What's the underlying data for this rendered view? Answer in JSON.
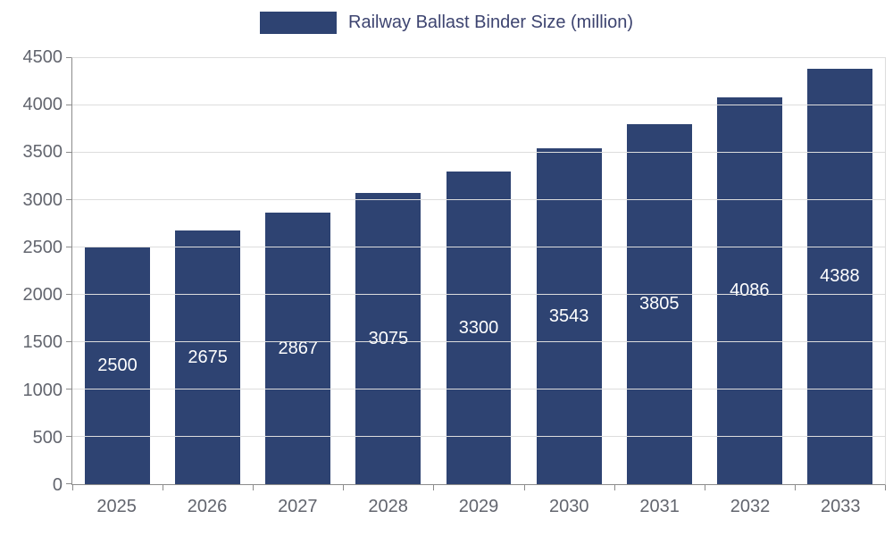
{
  "legend": {
    "label": "Railway Ballast Binder Size (million)"
  },
  "colors": {
    "bar": "#2E4372",
    "legend_text": "#3D4470",
    "grid": "#DDDDDD",
    "axis": "#8B8B8B",
    "tick_label": "#62656E",
    "bar_label": "#FFFFFF",
    "background": "#FFFFFF"
  },
  "chart_data": {
    "type": "bar",
    "title": "Railway Ballast Binder Size (million)",
    "categories": [
      "2025",
      "2026",
      "2027",
      "2028",
      "2029",
      "2030",
      "2031",
      "2032",
      "2033"
    ],
    "values": [
      2500,
      2675,
      2867,
      3075,
      3300,
      3543,
      3805,
      4086,
      4388
    ],
    "xlabel": "",
    "ylabel": "",
    "ylim": [
      0,
      4500
    ],
    "ytick_step": 500,
    "grid": true,
    "legend_position": "top",
    "value_labels": "inside-center"
  }
}
